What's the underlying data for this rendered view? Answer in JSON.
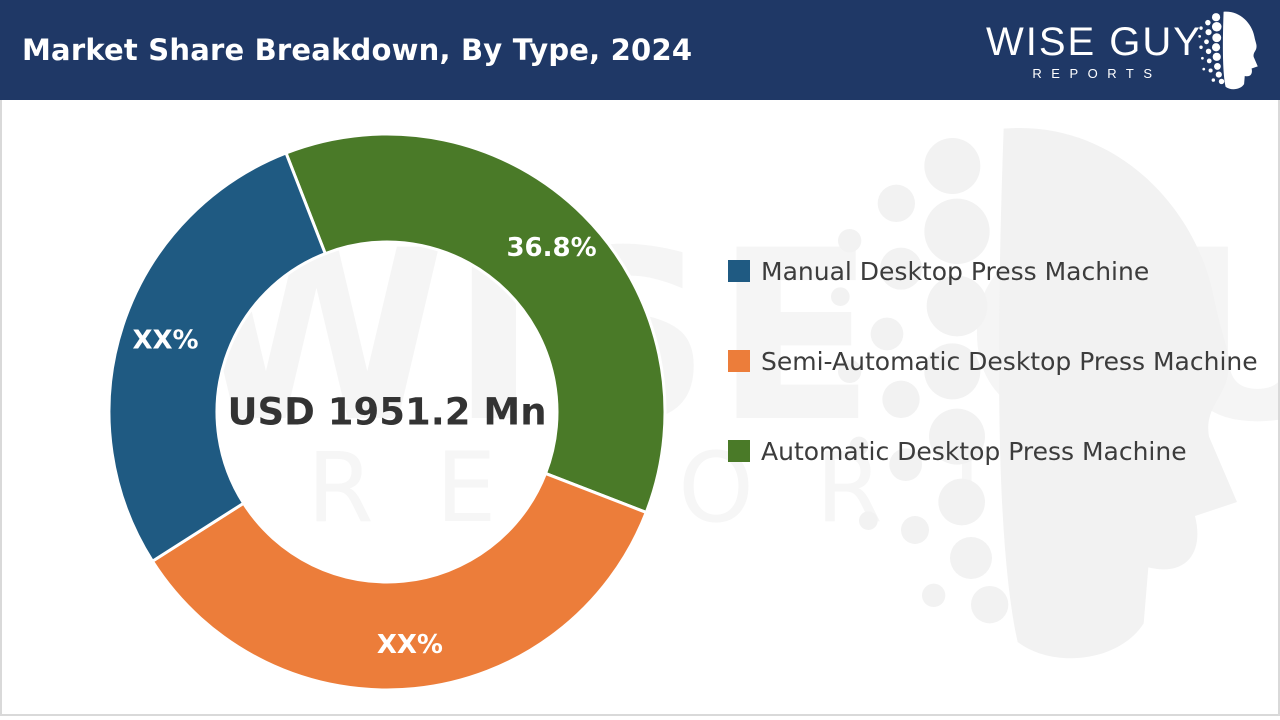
{
  "header": {
    "title": "Market Share Breakdown, By Type, 2024",
    "logo": {
      "line1": "WISE GUY",
      "line2": "REPORTS"
    }
  },
  "watermark": {
    "line1": "WISE GUY",
    "line2": "REPORTS"
  },
  "chart_data": {
    "type": "pie",
    "variant": "donut",
    "title": "Market Share Breakdown, By Type, 2024",
    "center_label": "USD 1951.2 Mn",
    "start_angle_deg": -21.3,
    "direction": "clockwise",
    "inner_radius_ratio": 0.61,
    "legend_position": "right",
    "segments": [
      {
        "name": "Automatic Desktop Press Machine",
        "display_label": "36.8%",
        "value_pct": 36.8,
        "color": "#4A7A28"
      },
      {
        "name": "Semi-Automatic Desktop Press Machine",
        "display_label": "XX%",
        "value_pct": 35.1,
        "color": "#EC7D3A"
      },
      {
        "name": "Manual Desktop Press Machine",
        "display_label": "XX%",
        "value_pct": 28.1,
        "color": "#1F5A82"
      }
    ],
    "legend": [
      {
        "label": "Manual Desktop Press Machine",
        "color": "#1F5A82"
      },
      {
        "label": "Semi-Automatic Desktop Press Machine",
        "color": "#EC7D3A"
      },
      {
        "label": "Automatic Desktop Press Machine",
        "color": "#4A7A28"
      }
    ]
  },
  "colors": {
    "header_bg": "#1F3866",
    "canvas_border": "#D9D9D9",
    "slice_gap": "#FFFFFF",
    "slice_label_text": "#FFFFFF",
    "center_text": "#333333",
    "legend_text": "#3C3C3C",
    "watermark_text": "#F5F5F5"
  }
}
